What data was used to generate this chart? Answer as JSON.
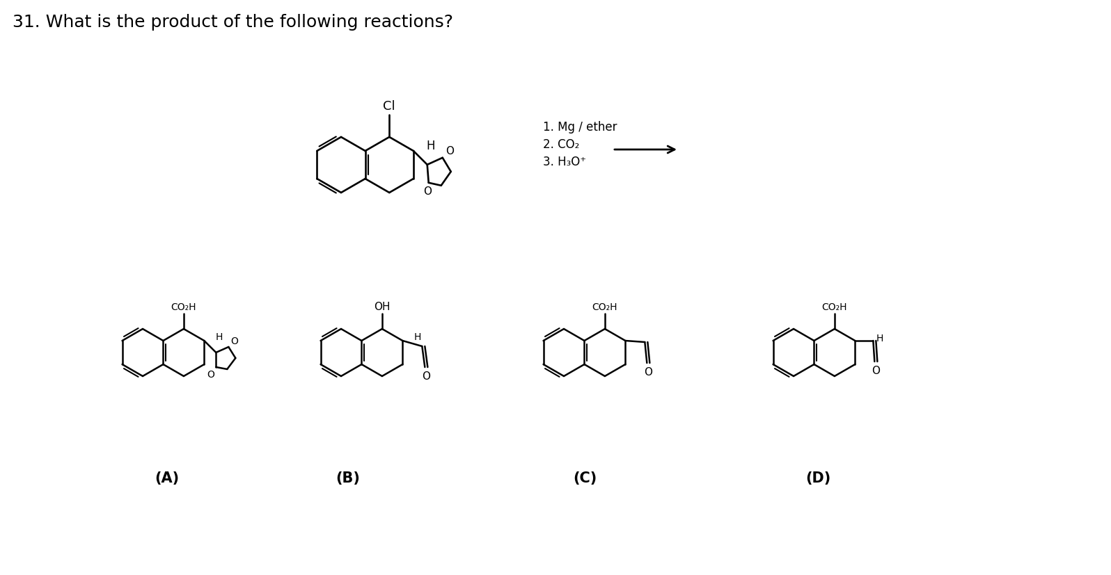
{
  "title": "31. What is the product of the following reactions?",
  "title_fontsize": 18,
  "background_color": "#ffffff",
  "text_color": "#000000",
  "reactions": [
    "1. Mg / ether",
    "2. CO₂",
    "3. H₃O⁺"
  ],
  "answer_labels": [
    "(A)",
    "(B)",
    "(C)",
    "(D)"
  ],
  "font_family": "DejaVu Sans"
}
